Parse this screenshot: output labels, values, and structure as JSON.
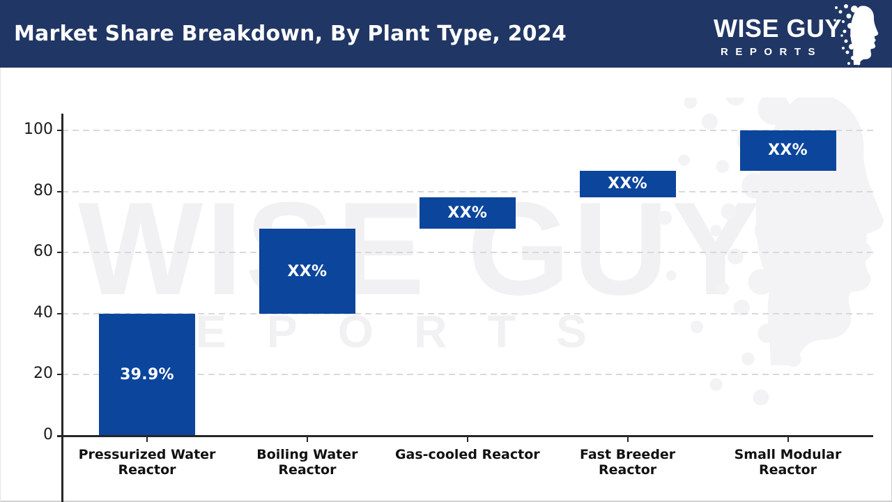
{
  "header": {
    "title": "Market Share Breakdown, By Plant Type, 2024",
    "logo": {
      "name": "WISE GUY",
      "subname": "REPORTS"
    }
  },
  "watermark": {
    "line1": "WISE GUY",
    "line2": "REPORTS"
  },
  "chart_data": {
    "type": "bar",
    "variant": "waterfall",
    "title": "Market Share Breakdown, By Plant Type, 2024",
    "unit": "percent market share",
    "categories": [
      "Pressurized Water Reactor",
      "Boiling Water Reactor",
      "Gas-cooled Reactor",
      "Fast Breeder Reactor",
      "Small Modular Reactor"
    ],
    "category_label_lines": [
      [
        "Pressurized Water",
        "Reactor"
      ],
      [
        "Boiling Water",
        "Reactor"
      ],
      [
        "Gas-cooled Reactor"
      ],
      [
        "Fast Breeder",
        "Reactor"
      ],
      [
        "Small Modular",
        "Reactor"
      ]
    ],
    "bars": [
      {
        "category": "Pressurized Water Reactor",
        "label": "39.9%",
        "start": 0,
        "end": 39.9
      },
      {
        "category": "Boiling Water Reactor",
        "label": "XX%",
        "start": 39.9,
        "end": 67.7
      },
      {
        "category": "Gas-cooled Reactor",
        "label": "XX%",
        "start": 67.7,
        "end": 78.1
      },
      {
        "category": "Fast Breeder Reactor",
        "label": "XX%",
        "start": 78.1,
        "end": 86.8
      },
      {
        "category": "Small Modular Reactor",
        "label": "XX%",
        "start": 86.8,
        "end": 100
      }
    ],
    "y_ticks": [
      "0",
      "20",
      "40",
      "60",
      "80",
      "100"
    ],
    "y_tick_values": [
      0,
      20,
      40,
      60,
      80,
      100
    ],
    "ylim": [
      0,
      105
    ],
    "grid": "horizontal dashed",
    "legend": "none",
    "colors": {
      "bar": "#0b459c",
      "bar_label": "#ffffff",
      "grid": "#d9d9d9",
      "axis": "#262626",
      "header_bg": "#203664",
      "watermark": "#f1f1f3"
    }
  }
}
